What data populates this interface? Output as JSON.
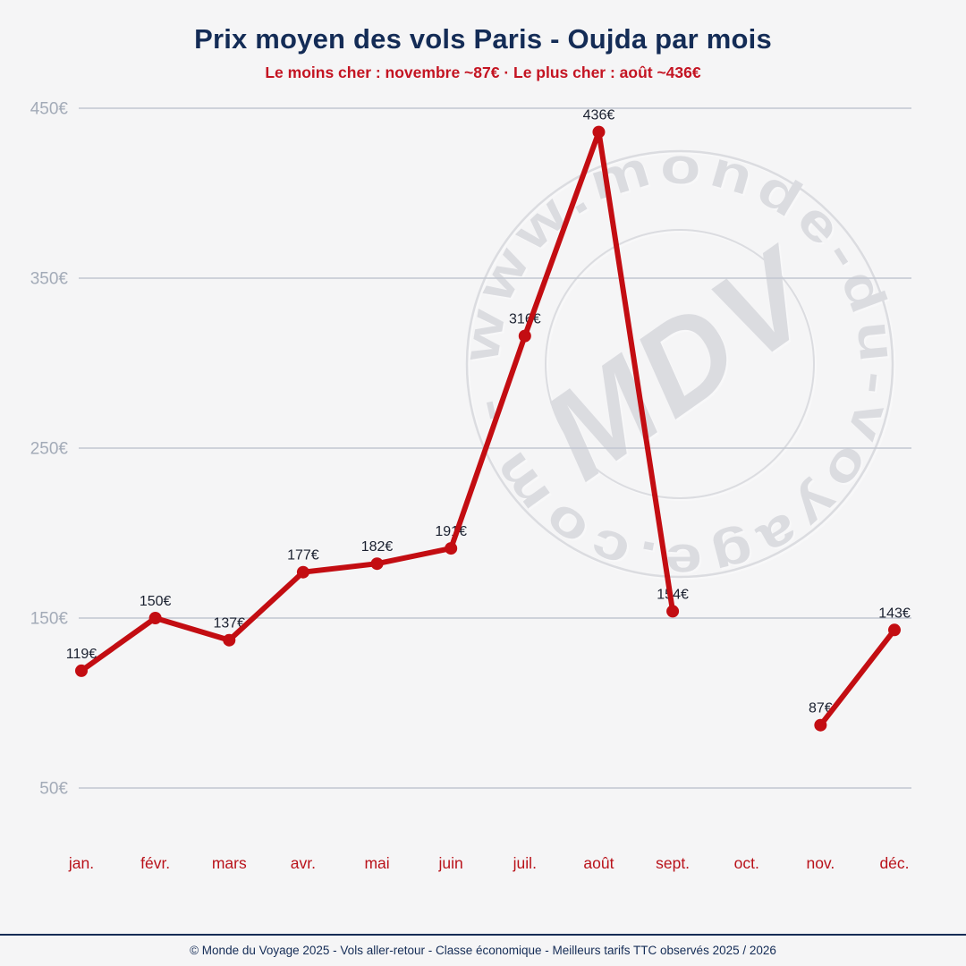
{
  "header": {
    "title": "Prix moyen des vols Paris - Oujda par mois",
    "subtitle": "Le moins cher : novembre ~87€ · Le plus cher : août ~436€"
  },
  "chart_data": {
    "type": "line",
    "title": "Prix moyen des vols Paris - Oujda par mois",
    "categories": [
      "jan.",
      "févr.",
      "mars",
      "avr.",
      "mai",
      "juin",
      "juil.",
      "août",
      "sept.",
      "oct.",
      "nov.",
      "déc."
    ],
    "values": [
      119,
      150,
      137,
      177,
      182,
      191,
      316,
      436,
      154,
      null,
      87,
      143
    ],
    "unit": "€",
    "xlabel": "",
    "ylabel": "",
    "yticks": [
      450,
      350,
      250,
      150,
      50
    ],
    "ylim": [
      50,
      450
    ],
    "grid": true,
    "legend": false,
    "missing_months": [
      "oct."
    ],
    "min_point": {
      "month": "novembre",
      "value": 87
    },
    "max_point": {
      "month": "août",
      "value": 436
    }
  },
  "watermark": {
    "ring_text": "www.monde-du-voyage.com -",
    "center_text": "MDV"
  },
  "footer": {
    "text": "© Monde du Voyage 2025 - Vols aller-retour - Classe économique - Meilleurs tarifs TTC observés 2025 / 2026"
  },
  "colors": {
    "background": "#f5f5f6",
    "title_navy": "#142c56",
    "subtitle_red": "#c41422",
    "line_red": "#c30d12",
    "data_label": "#1b2130",
    "ytick_gray": "#a3abb8",
    "xtick_red": "#b9121a",
    "grid_gray": "#c2c7d1",
    "watermark_gray": "#b2b4bf",
    "footer_navy": "#142c56"
  }
}
